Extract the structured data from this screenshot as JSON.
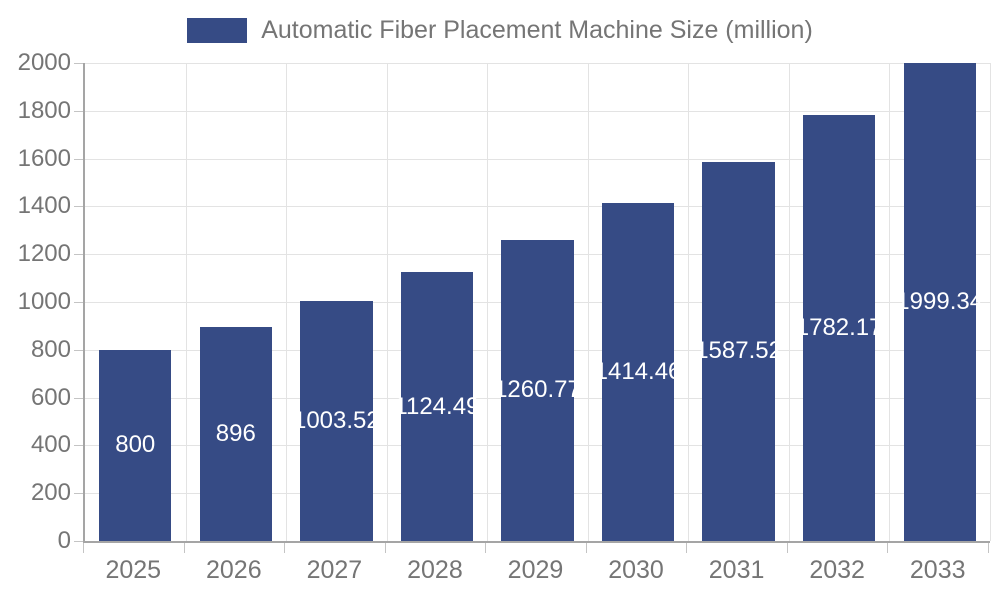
{
  "legend": {
    "label": "Automatic Fiber Placement Machine Size (million)"
  },
  "colors": {
    "bar": "#364B85",
    "bar_label": "#ffffff",
    "grid": "#e3e3e3",
    "axis_line": "#a5a5a5",
    "tick": "#c4c4c4",
    "text": "#757575",
    "background": "#ffffff"
  },
  "chart_data": {
    "type": "bar",
    "title": "Automatic Fiber Placement Machine Size (million)",
    "categories": [
      "2025",
      "2026",
      "2027",
      "2028",
      "2029",
      "2030",
      "2031",
      "2032",
      "2033"
    ],
    "series": [
      {
        "name": "Automatic Fiber Placement Machine Size (million)",
        "values": [
          800,
          896,
          1003.52,
          1124.49,
          1260.77,
          1414.46,
          1587.52,
          1782.17,
          1999.34
        ]
      }
    ],
    "value_labels": [
      "800",
      "896",
      "1003.52",
      "1124.49",
      "1260.77",
      "1414.46",
      "1587.52",
      "1782.17",
      "1999.34"
    ],
    "xlabel": "",
    "ylabel": "",
    "ylim": [
      0,
      2000
    ],
    "yticks": [
      0,
      200,
      400,
      600,
      800,
      1000,
      1200,
      1400,
      1600,
      1800,
      2000
    ],
    "grid": true,
    "legend_position": "top",
    "value_labels_inside_bars": true
  }
}
